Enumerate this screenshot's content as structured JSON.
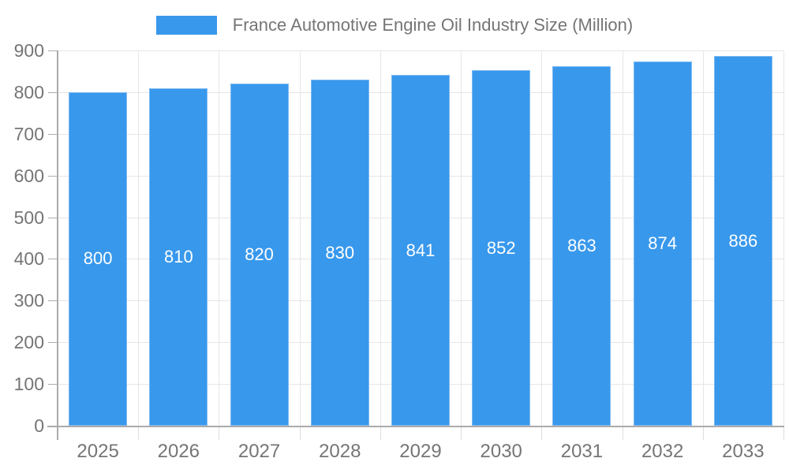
{
  "legend": {
    "label": "France Automotive Engine Oil Industry Size (Million)"
  },
  "colors": {
    "bar": "#3898EC",
    "bar_border": "#7DB9F2",
    "value_label": "#FFFFFF",
    "axis_text": "#757575",
    "axis_line": "#ABABAB",
    "gridline": "#E6E6E6",
    "background": "#FFFFFF"
  },
  "chart_data": {
    "type": "bar",
    "title": "France Automotive Engine Oil Industry Size (Million)",
    "categories": [
      "2025",
      "2026",
      "2027",
      "2028",
      "2029",
      "2030",
      "2031",
      "2032",
      "2033"
    ],
    "values": [
      800,
      810,
      820,
      830,
      841,
      852,
      863,
      874,
      886
    ],
    "value_labels_shown": true,
    "value_label_position": "center-of-bar",
    "xlabel": "",
    "ylabel": "",
    "ylim": [
      0,
      900
    ],
    "ytick_step": 100,
    "yticks": [
      "0",
      "100",
      "200",
      "300",
      "400",
      "500",
      "600",
      "700",
      "800",
      "900"
    ],
    "grid": true,
    "legend_position": "top-center"
  }
}
